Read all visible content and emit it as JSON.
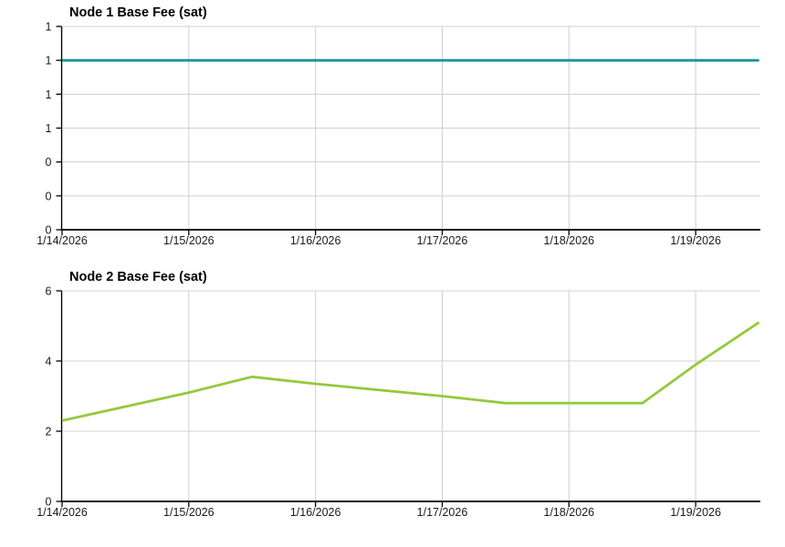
{
  "page": {
    "background": "#ffffff"
  },
  "theme": {
    "grid_color": "#d0d0d0",
    "axis_color": "#000000",
    "tick_label_color": "#1a1a1a",
    "title_color": "#000000",
    "node1_line_color": "#17949d",
    "node2_line_color": "#94c93d"
  },
  "chart_data": [
    {
      "type": "line",
      "title": "Node 1 Base Fee (sat)",
      "xlabel": "",
      "ylabel": "",
      "grid": true,
      "legend": "none",
      "x_unit": "days since 1/14/2026",
      "x_tick_values": [
        0,
        1,
        2,
        3,
        4,
        5
      ],
      "x_tick_labels": [
        "1/14/2026",
        "1/15/2026",
        "1/16/2026",
        "1/17/2026",
        "1/18/2026",
        "1/19/2026"
      ],
      "xlim": [
        0,
        5.51
      ],
      "y_tick_values": [
        0,
        0.2,
        0.4,
        0.6,
        0.8,
        1,
        1.2
      ],
      "y_tick_labels": [
        "0",
        "0",
        "0",
        "1",
        "1",
        "1",
        "1"
      ],
      "ylim": [
        0,
        1.2
      ],
      "series": [
        {
          "name": "Node 1 base fee",
          "color": "#17949d",
          "x": [
            0,
            5.5
          ],
          "values": [
            1,
            1
          ]
        }
      ]
    },
    {
      "type": "line",
      "title": "Node 2 Base Fee (sat)",
      "xlabel": "",
      "ylabel": "",
      "grid": true,
      "legend": "none",
      "x_unit": "days since 1/14/2026",
      "x_tick_values": [
        0,
        1,
        2,
        3,
        4,
        5
      ],
      "x_tick_labels": [
        "1/14/2026",
        "1/15/2026",
        "1/16/2026",
        "1/17/2026",
        "1/18/2026",
        "1/19/2026"
      ],
      "xlim": [
        0,
        5.51
      ],
      "y_tick_values": [
        0,
        2,
        4,
        6
      ],
      "y_tick_labels": [
        "0",
        "2",
        "4",
        "6"
      ],
      "ylim": [
        0,
        6
      ],
      "series": [
        {
          "name": "Node 2 base fee",
          "color": "#94c93d",
          "x": [
            0,
            1,
            1.5,
            2,
            3,
            3.5,
            4,
            4.58,
            5,
            5.5
          ],
          "values": [
            2.3,
            3.1,
            3.55,
            3.35,
            3.0,
            2.8,
            2.8,
            2.8,
            3.9,
            5.1
          ]
        }
      ]
    }
  ]
}
